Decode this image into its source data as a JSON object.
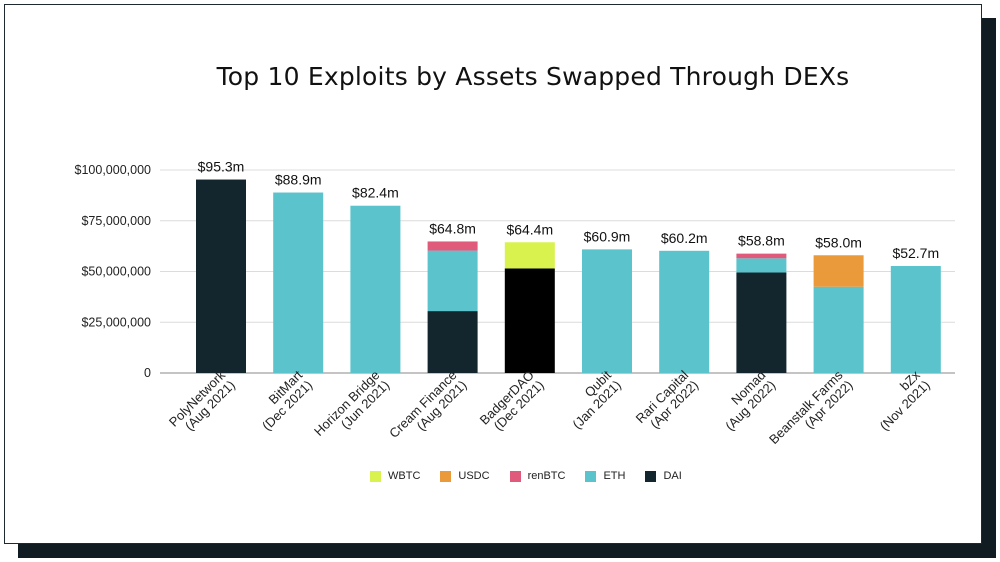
{
  "chart_data": {
    "type": "bar",
    "stacked": true,
    "title": "Top 10 Exploits by Assets Swapped Through DEXs",
    "xlabel": "",
    "ylabel": "",
    "ylim": [
      0,
      100000000
    ],
    "yticks": [
      0,
      25000000,
      50000000,
      75000000,
      100000000
    ],
    "ytick_labels": [
      "0",
      "$25,000,000",
      "$50,000,000",
      "$75,000,000",
      "$100,000,000"
    ],
    "grid": true,
    "legend_position": "bottom",
    "categories": [
      [
        "PolyNetwork",
        "(Aug 2021)"
      ],
      [
        "BitMart",
        "(Dec 2021)"
      ],
      [
        "Horizon Bridge",
        "(Jun 2021)"
      ],
      [
        "Cream Finance",
        "(Aug 2021)"
      ],
      [
        "BadgerDAO",
        "(Dec 2021)"
      ],
      [
        "Qubit",
        "(Jan 2021)"
      ],
      [
        "Rari Capital",
        "(Apr 2022)"
      ],
      [
        "Nomad",
        "(Aug 2022)"
      ],
      [
        "Beanstalk Farms",
        "(Apr 2022)"
      ],
      [
        "bZx",
        "(Nov 2021)"
      ]
    ],
    "totals_labels": [
      "$95.3m",
      "$88.9m",
      "$82.4m",
      "$64.8m",
      "$64.4m",
      "$60.9m",
      "$60.2m",
      "$58.8m",
      "$58.0m",
      "$52.7m"
    ],
    "series": [
      {
        "name": "DAI",
        "color": "#13262e",
        "values": [
          95300000,
          0,
          0,
          30500000,
          51500000,
          0,
          0,
          49500000,
          0,
          0
        ]
      },
      {
        "name": "ETH",
        "color": "#5ac3cc",
        "values": [
          0,
          88900000,
          82400000,
          29800000,
          0,
          60900000,
          60200000,
          7000000,
          42500000,
          52700000
        ]
      },
      {
        "name": "renBTC",
        "color": "#e05a7b",
        "values": [
          0,
          0,
          0,
          4500000,
          0,
          0,
          0,
          2300000,
          0,
          0
        ]
      },
      {
        "name": "USDC",
        "color": "#ea9a3a",
        "values": [
          0,
          0,
          0,
          0,
          0,
          0,
          0,
          0,
          15500000,
          0
        ]
      },
      {
        "name": "WBTC",
        "color": "#d9f24d",
        "values": [
          0,
          0,
          0,
          0,
          12900000,
          0,
          0,
          0,
          0,
          0
        ]
      }
    ],
    "legend_order": [
      "WBTC",
      "USDC",
      "renBTC",
      "ETH",
      "DAI"
    ],
    "dai_colors": [
      "#13262e",
      "#000000"
    ]
  }
}
